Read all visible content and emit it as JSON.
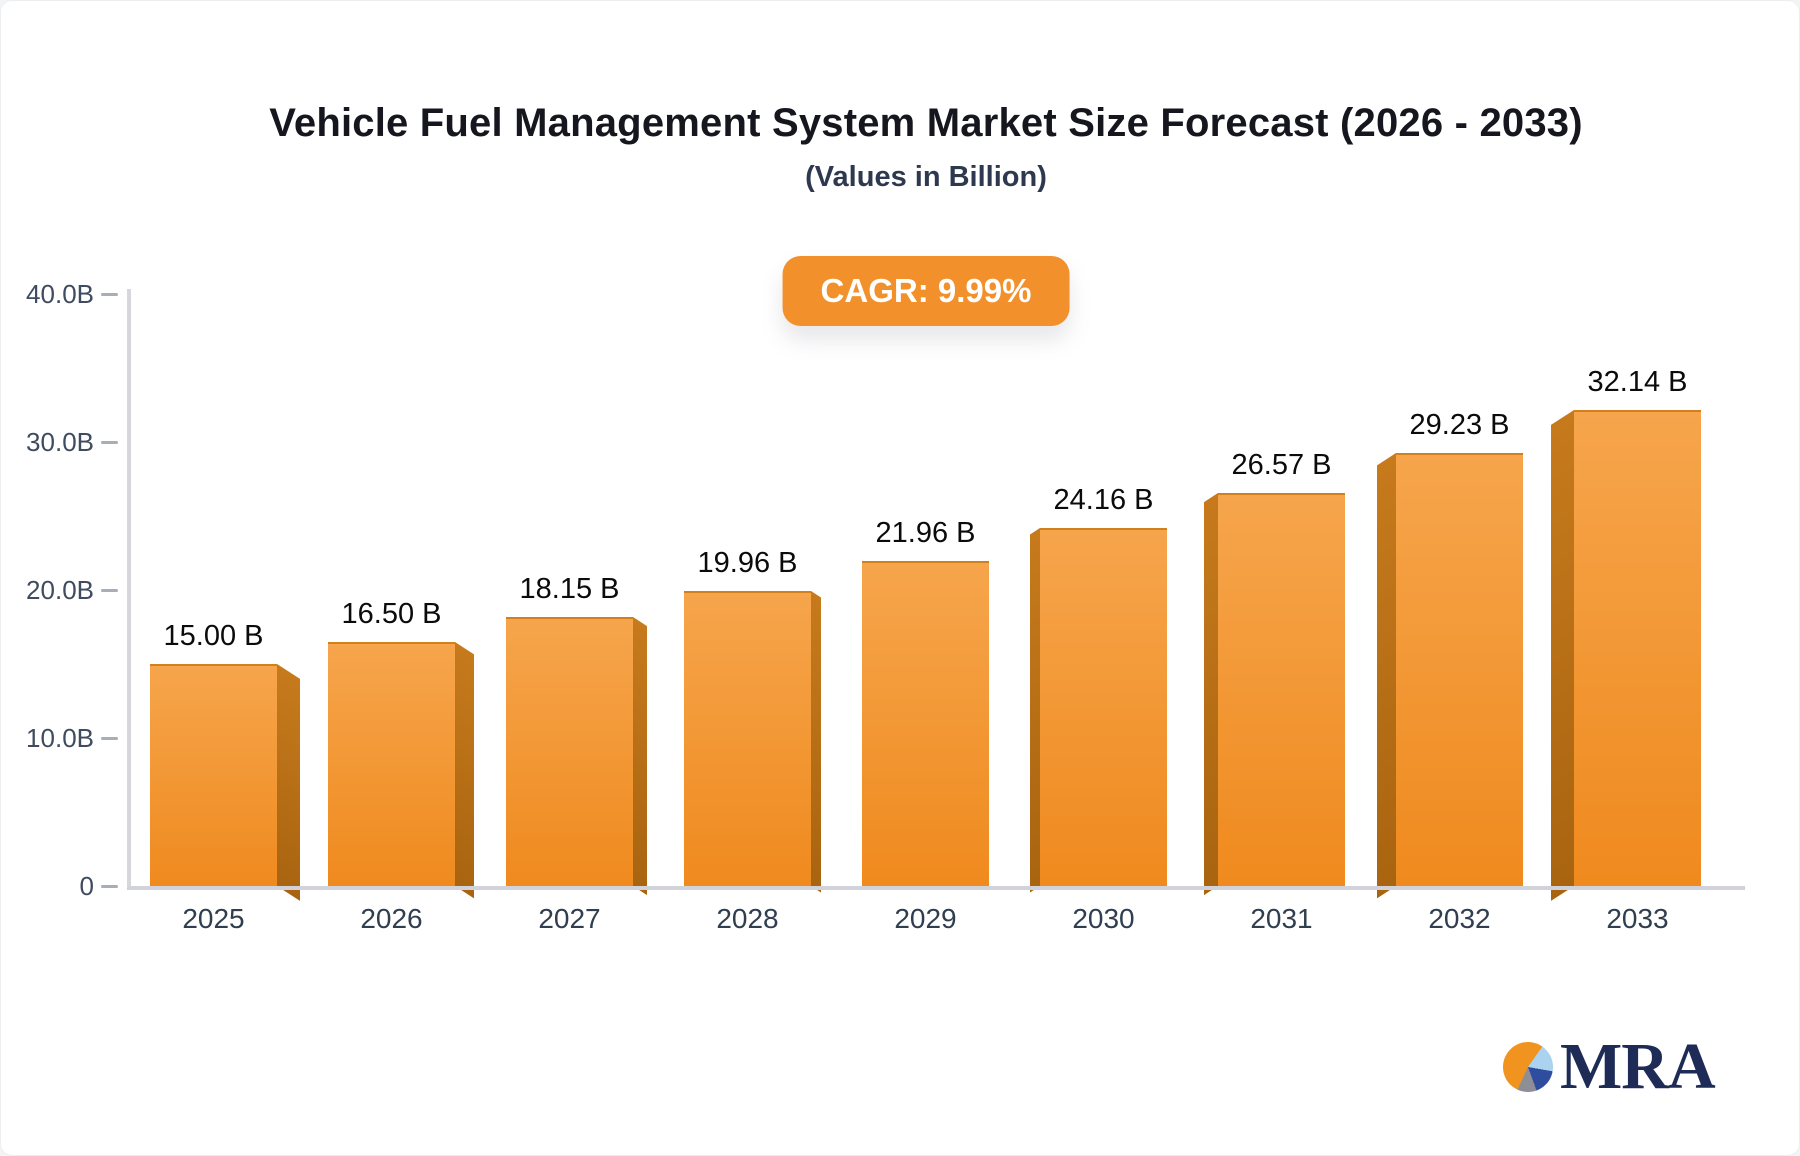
{
  "title": "Vehicle Fuel Management System Market Size Forecast (2026 - 2033)",
  "subtitle": "(Values in Billion)",
  "cagr_badge": "CAGR: 9.99%",
  "chart_data": {
    "type": "bar",
    "style": "3d-perspective-columns",
    "title": "Vehicle Fuel Management System Market Size Forecast (2026 - 2033)",
    "subtitle": "(Values in Billion)",
    "categories": [
      "2025",
      "2026",
      "2027",
      "2028",
      "2029",
      "2030",
      "2031",
      "2032",
      "2033"
    ],
    "values": [
      15.0,
      16.5,
      18.15,
      19.96,
      21.96,
      24.16,
      26.57,
      29.23,
      32.14
    ],
    "value_labels": [
      "15.00 B",
      "16.50 B",
      "18.15 B",
      "19.96 B",
      "21.96 B",
      "24.16 B",
      "26.57 B",
      "29.23 B",
      "32.14 B"
    ],
    "unit": "Billion",
    "cagr": "9.99%",
    "xlabel": "",
    "ylabel": "",
    "ylim": [
      0,
      40
    ],
    "yticks": [
      {
        "value": 0,
        "label": "0"
      },
      {
        "value": 10,
        "label": "10.0B"
      },
      {
        "value": 20,
        "label": "20.0B"
      },
      {
        "value": 30,
        "label": "30.0B"
      },
      {
        "value": 40,
        "label": "40.0B"
      }
    ],
    "grid": false,
    "legend": false
  },
  "colors": {
    "bar_face_top": "#F6A54C",
    "bar_face_bottom": "#EF8A1E",
    "bar_side_top": "#C67A1C",
    "bar_side_bottom": "#A96410",
    "badge_bg": "#F2912C",
    "axis_line": "#D6D7DD",
    "tick_text": "#3F4B5E",
    "title_text": "#16161F"
  },
  "logo": {
    "text": "MRA",
    "pie_colors": {
      "orange": "#F0941F",
      "light_blue": "#A9D3EE",
      "navy": "#2E4D9E",
      "gray": "#8E8E96"
    }
  }
}
